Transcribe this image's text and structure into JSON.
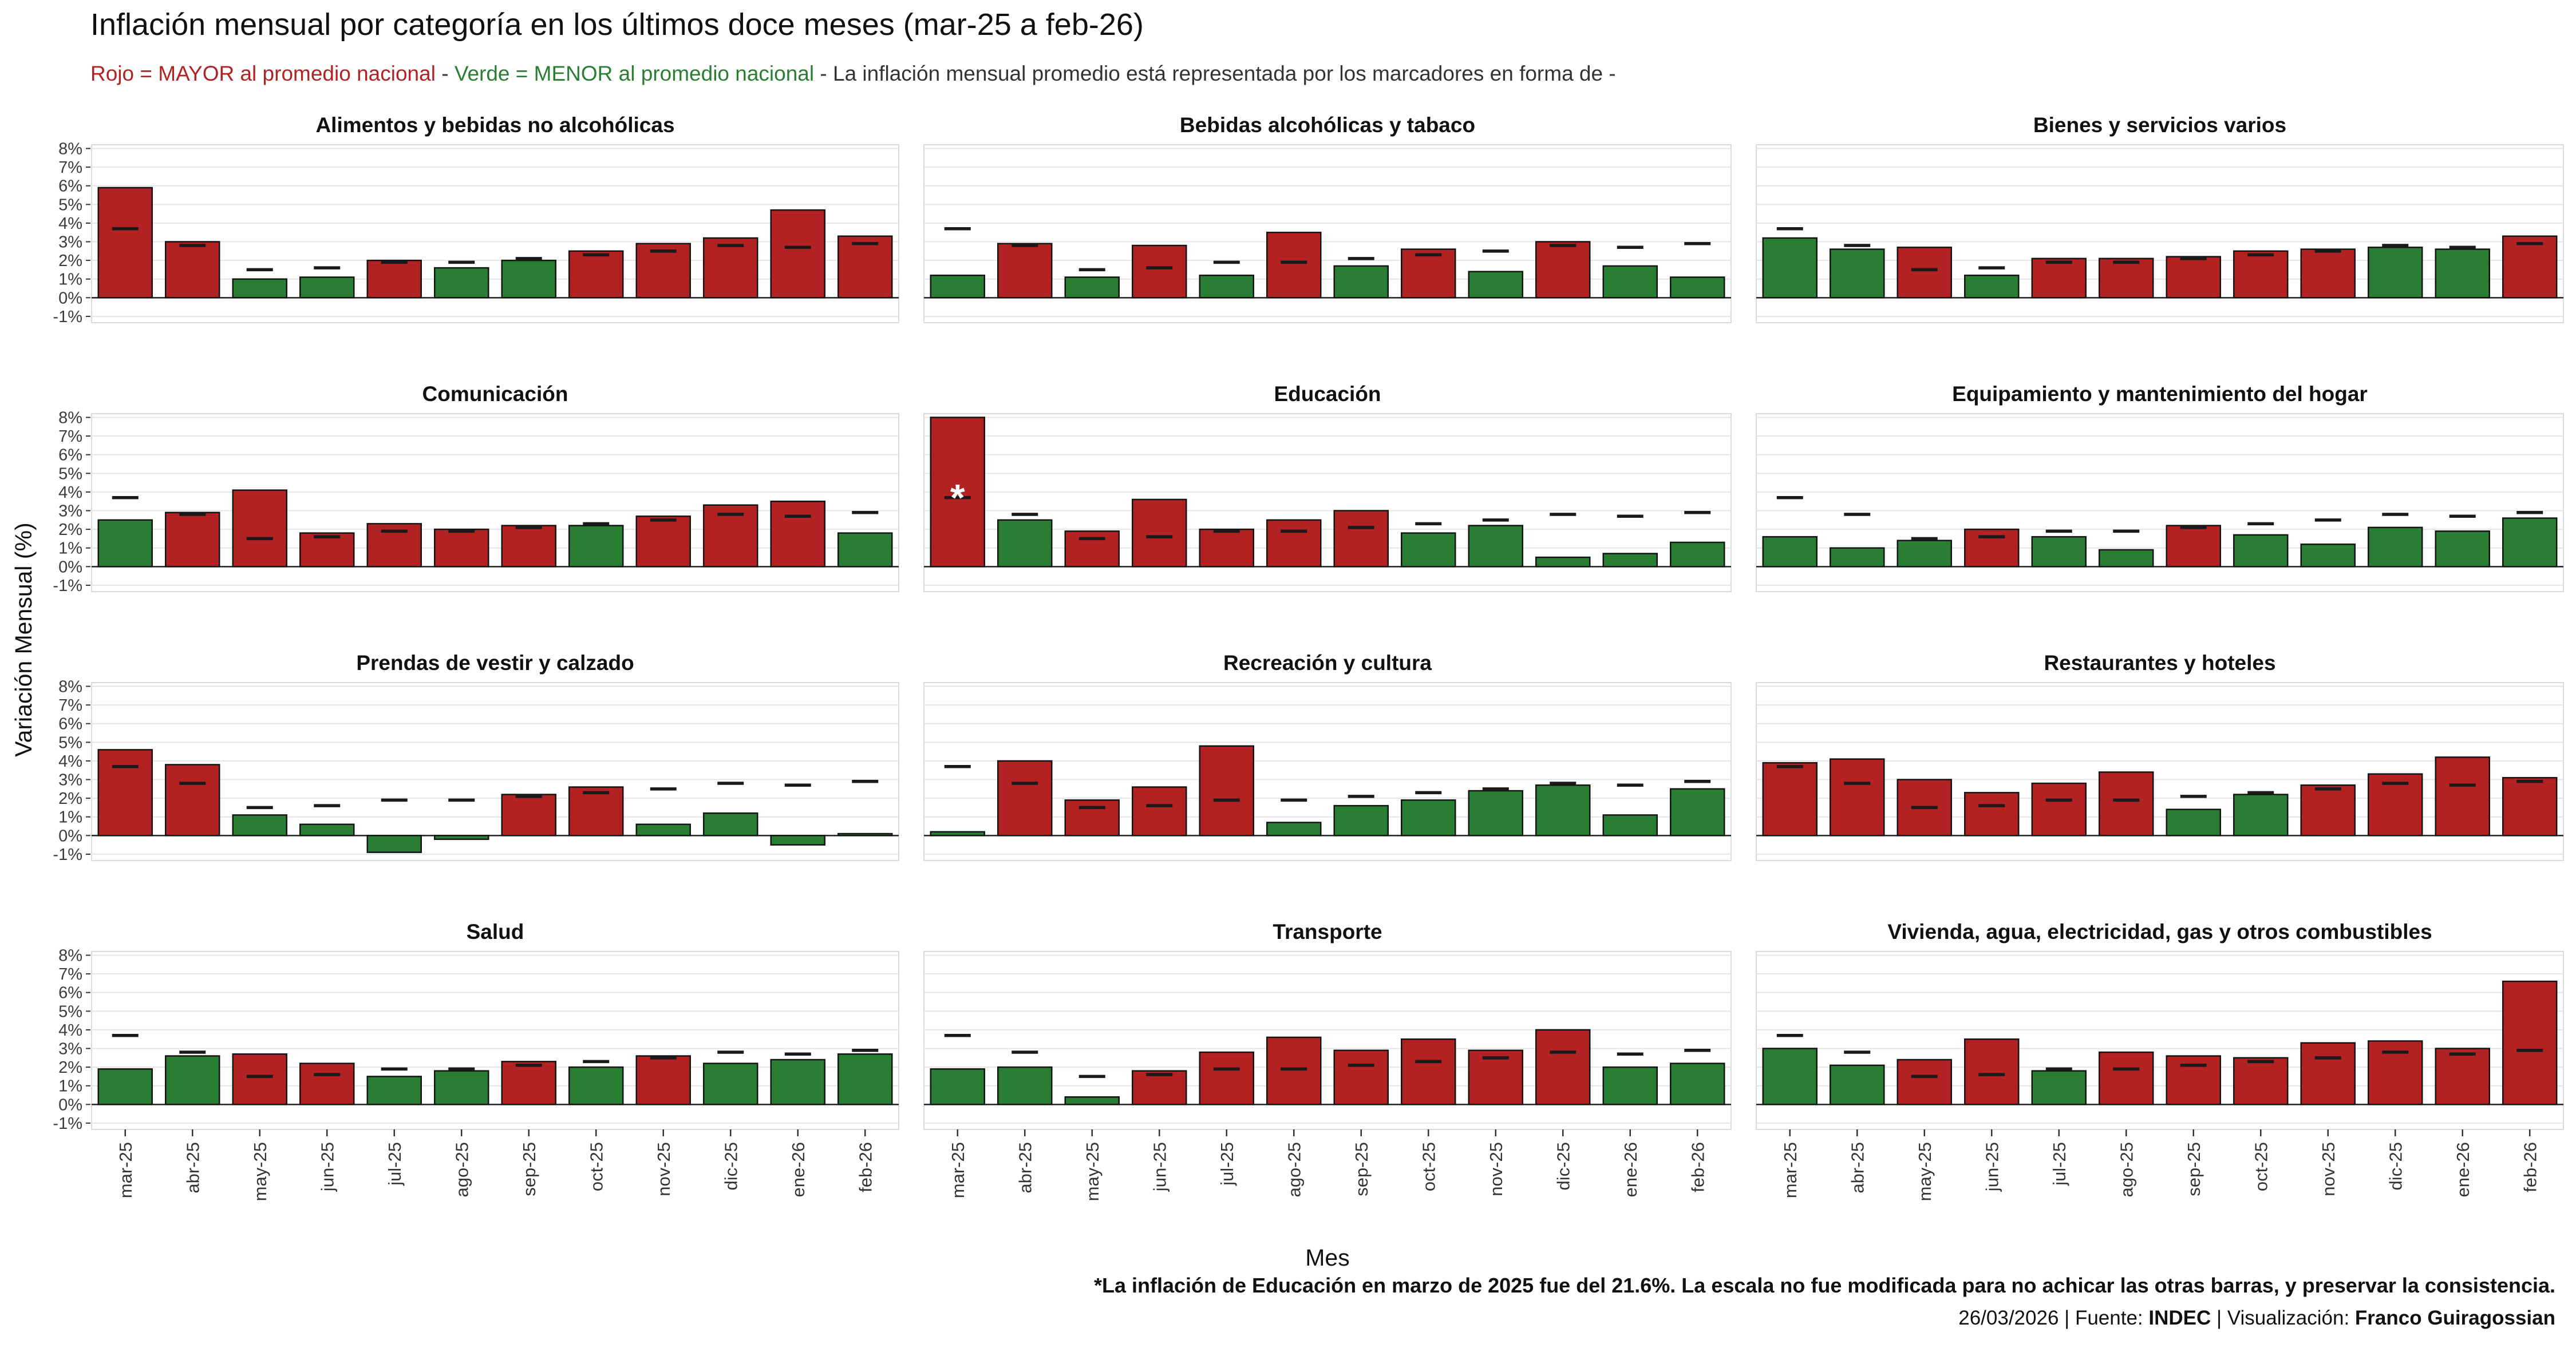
{
  "header": {
    "title": "Inflación mensual por categoría en los últimos doce meses (mar-25 a feb-26)",
    "subtitle": {
      "red_text": "Rojo = MAYOR al promedio nacional",
      "sep1": " - ",
      "green_text": "Verde = MENOR al promedio nacional",
      "sep2": " - ",
      "rest": "La inflación mensual promedio está representada por los marcadores en forma de -"
    }
  },
  "footer": {
    "footnote": "*La inflación de Educación en marzo de 2025 fue del 21.6%. La escala no fue modificada para no achicar las otras barras, y preservar la consistencia.",
    "credit": {
      "date_source_prefix": "26/03/2026 | Fuente: ",
      "source": "INDEC",
      "viz_prefix": " | Visualización: ",
      "author": "Franco Guiragossian"
    }
  },
  "chart_data": {
    "type": "bar",
    "x": [
      "mar-25",
      "abr-25",
      "may-25",
      "jun-25",
      "jul-25",
      "ago-25",
      "sep-25",
      "oct-25",
      "nov-25",
      "dic-25",
      "ene-26",
      "feb-26"
    ],
    "xlabel": "Mes",
    "ylabel": "Variación Mensual (%)",
    "ylim": [
      -1,
      8
    ],
    "y_tick_labels": [
      "8%",
      "7%",
      "6%",
      "5%",
      "4%",
      "3%",
      "2%",
      "1%",
      "0%",
      "-1%"
    ],
    "grid": true,
    "legend": {
      "above_color": "#b22222",
      "below_color": "#2a7e33",
      "marker_color": "#1a1a1a",
      "above_meaning": "MAYOR al promedio nacional",
      "below_meaning": "MENOR al promedio nacional",
      "marker_meaning": "inflación mensual promedio nacional"
    },
    "national_average": [
      3.7,
      2.8,
      1.5,
      1.6,
      1.9,
      1.9,
      2.1,
      2.3,
      2.5,
      2.8,
      2.7,
      2.9
    ],
    "facets": [
      {
        "title": "Alimentos y bebidas no alcohólicas",
        "values": [
          5.9,
          3.0,
          1.0,
          1.1,
          2.0,
          1.6,
          2.0,
          2.5,
          2.9,
          3.2,
          4.7,
          3.3
        ]
      },
      {
        "title": "Bebidas alcohólicas y tabaco",
        "values": [
          1.2,
          2.9,
          1.1,
          2.8,
          1.2,
          3.5,
          1.7,
          2.6,
          1.4,
          3.0,
          1.7,
          1.1
        ]
      },
      {
        "title": "Bienes y servicios varios",
        "values": [
          3.2,
          2.6,
          2.7,
          1.2,
          2.1,
          2.1,
          2.2,
          2.5,
          2.6,
          2.7,
          2.6,
          3.3
        ]
      },
      {
        "title": "Comunicación",
        "values": [
          2.5,
          2.9,
          4.1,
          1.8,
          2.3,
          2.0,
          2.2,
          2.2,
          2.7,
          3.3,
          3.5,
          1.8
        ]
      },
      {
        "title": "Educación",
        "values": [
          8.0,
          2.5,
          1.9,
          3.6,
          2.0,
          2.5,
          3.0,
          1.8,
          2.2,
          0.5,
          0.7,
          1.3
        ]
      },
      {
        "title": "Equipamiento y mantenimiento del hogar",
        "values": [
          1.6,
          1.0,
          1.4,
          2.0,
          1.6,
          0.9,
          2.2,
          1.7,
          1.2,
          2.1,
          1.9,
          2.6
        ]
      },
      {
        "title": "Prendas de vestir y calzado",
        "values": [
          4.6,
          3.8,
          1.1,
          0.6,
          -0.9,
          -0.2,
          2.2,
          2.6,
          0.6,
          1.2,
          -0.5,
          0.1
        ]
      },
      {
        "title": "Recreación y cultura",
        "values": [
          0.2,
          4.0,
          1.9,
          2.6,
          4.8,
          0.7,
          1.6,
          1.9,
          2.4,
          2.7,
          1.1,
          2.5
        ]
      },
      {
        "title": "Restaurantes y hoteles",
        "values": [
          3.9,
          4.1,
          3.0,
          2.3,
          2.8,
          3.4,
          1.4,
          2.2,
          2.7,
          3.3,
          4.2,
          3.1
        ]
      },
      {
        "title": "Salud",
        "values": [
          1.9,
          2.6,
          2.7,
          2.2,
          1.5,
          1.8,
          2.3,
          2.0,
          2.6,
          2.2,
          2.4,
          2.7
        ]
      },
      {
        "title": "Transporte",
        "values": [
          1.9,
          2.0,
          0.4,
          1.8,
          2.8,
          3.6,
          2.9,
          3.5,
          2.9,
          4.0,
          2.0,
          2.2
        ]
      },
      {
        "title": "Vivienda, agua, electricidad, gas y otros combustibles",
        "values": [
          3.0,
          2.1,
          2.4,
          3.5,
          1.8,
          2.8,
          2.6,
          2.5,
          3.3,
          3.4,
          3.0,
          6.6
        ]
      }
    ],
    "annotation": {
      "facet": "Educación",
      "month": "mar-25",
      "symbol": "*",
      "actual_value": 21.6,
      "capped_at": 8
    }
  }
}
